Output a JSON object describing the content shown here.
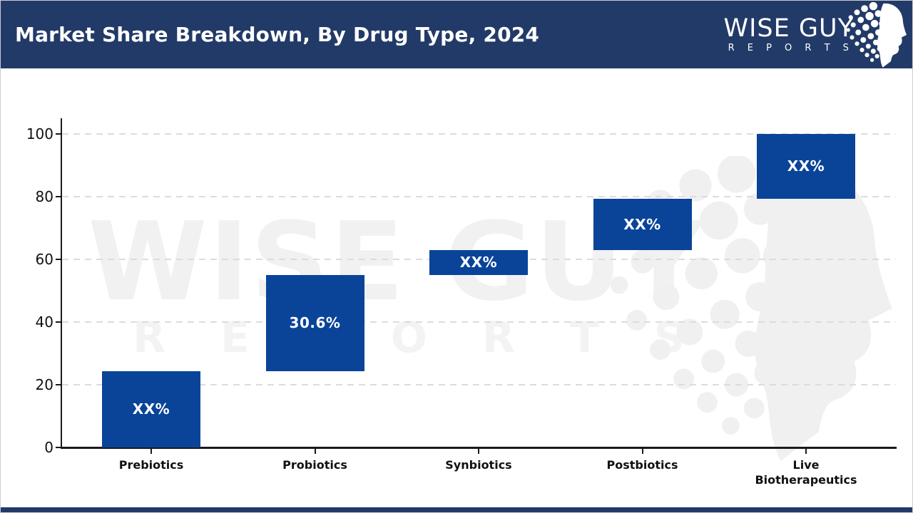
{
  "header": {
    "title": "Market Share Breakdown, By Drug Type, 2024",
    "logo": {
      "wordmark": "WISE GUY",
      "tagline": "R E P O R T S"
    }
  },
  "watermark": {
    "line1": "WISE GUY",
    "line2": "R E P O R T S"
  },
  "chart_data": {
    "type": "bar",
    "subtype": "waterfall",
    "title": "Market Share Breakdown, By Drug Type, 2024",
    "xlabel": "",
    "ylabel": "",
    "ylim": [
      0,
      105
    ],
    "yticks": [
      0,
      20,
      40,
      60,
      80,
      100
    ],
    "grid": "horizontal-dashed",
    "legend": "none",
    "bar_color": "#0a4499",
    "value_label_color": "#ffffff",
    "categories": [
      "Prebiotics",
      "Probiotics",
      "Synbiotics",
      "Postbiotics",
      "Live\nBiotherapeutics"
    ],
    "segments": [
      {
        "category": "Prebiotics",
        "start": 0,
        "end": 24.4,
        "value_label": "XX%"
      },
      {
        "category": "Probiotics",
        "start": 24.4,
        "end": 55.0,
        "value_label": "30.6%",
        "value": 30.6
      },
      {
        "category": "Synbiotics",
        "start": 55.0,
        "end": 63.0,
        "value_label": "XX%"
      },
      {
        "category": "Postbiotics",
        "start": 63.0,
        "end": 79.4,
        "value_label": "XX%"
      },
      {
        "category": "Live Biotherapeutics",
        "start": 79.4,
        "end": 100.0,
        "value_label": "XX%"
      }
    ]
  },
  "colors": {
    "header_background": "#223a68",
    "footer_background": "#223a68",
    "bar_blue": "#0a4499",
    "axis_black": "#1a1a1a",
    "gridline_gray": "#dcdcdc",
    "watermark_gray": "#f1f1f1",
    "title_text": "#ffffff"
  }
}
